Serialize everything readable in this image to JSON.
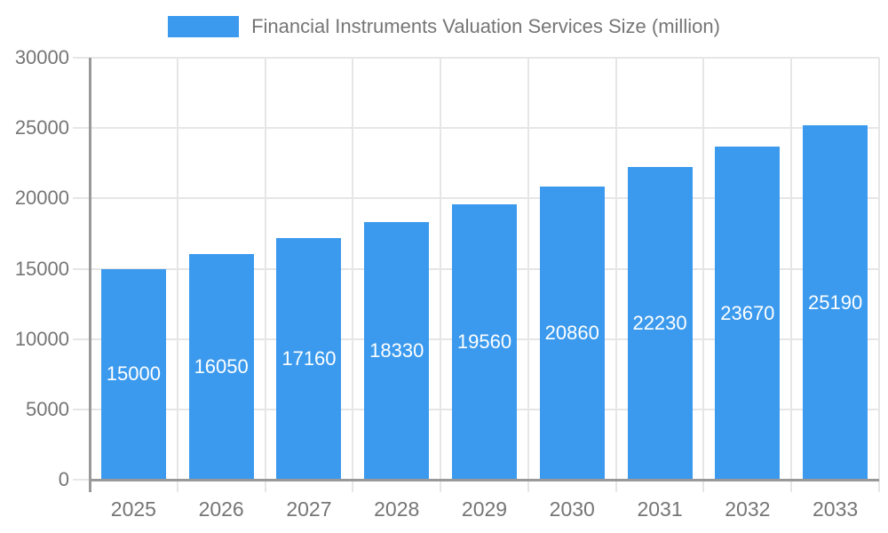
{
  "legend": {
    "items": [
      {
        "label": "Financial Instruments Valuation Services Size (million)",
        "color": "#3b9aee"
      }
    ]
  },
  "chart_data": {
    "type": "bar",
    "title": "Financial Instruments Valuation Services Size (million)",
    "categories": [
      "2025",
      "2026",
      "2027",
      "2028",
      "2029",
      "2030",
      "2031",
      "2032",
      "2033"
    ],
    "values": [
      15000,
      16050,
      17160,
      18330,
      19560,
      20860,
      22230,
      23670,
      25190
    ],
    "xlabel": "",
    "ylabel": "",
    "ylim": [
      0,
      30000
    ],
    "y_ticks": [
      0,
      5000,
      10000,
      15000,
      20000,
      25000,
      30000
    ],
    "grid": true,
    "legend_position": "top",
    "value_labels_position": "inside-middle"
  },
  "colors": {
    "bar": "#3b9aee",
    "grid_line": "#e6e6e6",
    "axis_line": "#999999",
    "tick_text": "#757575",
    "value_label_text": "#ffffff",
    "background": "#ffffff"
  }
}
